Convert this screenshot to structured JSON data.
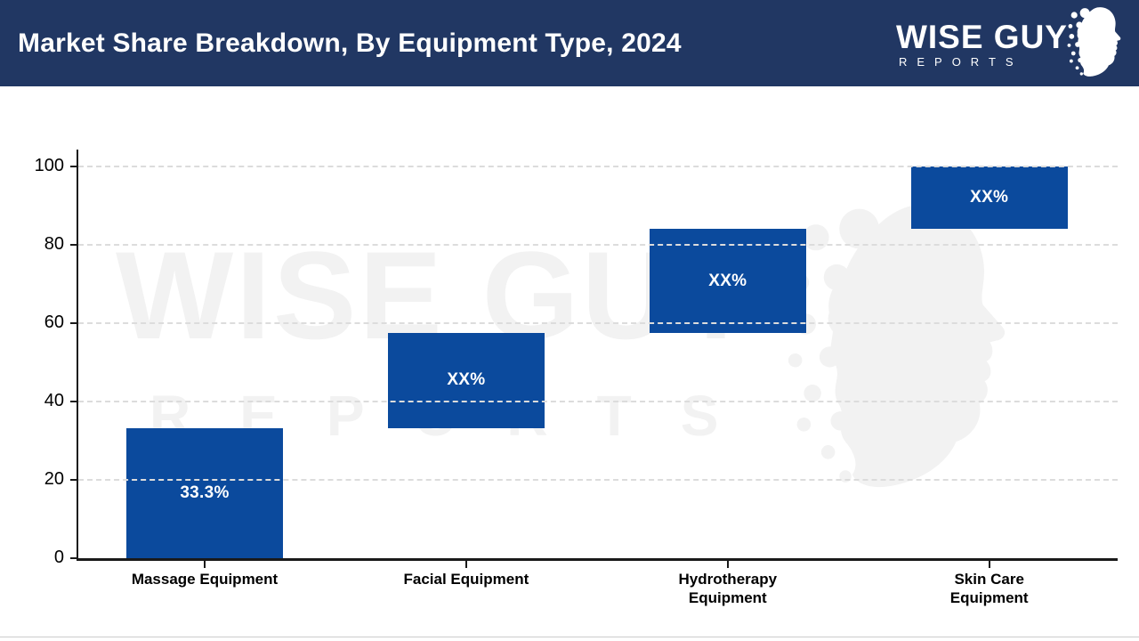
{
  "header": {
    "title": "Market Share Breakdown, By Equipment Type, 2024",
    "logo": {
      "name_top": "WISE GUY",
      "name_bottom": "REPORTS"
    }
  },
  "watermark": {
    "text_top": "WISE GUY",
    "text_bottom": "REPORTS"
  },
  "chart_data": {
    "type": "bar",
    "subtype": "waterfall",
    "title": "Market Share Breakdown, By Equipment Type, 2024",
    "categories": [
      "Massage Equipment",
      "Facial Equipment",
      "Hydrotherapy Equipment",
      "Skin Care Equipment"
    ],
    "segments": [
      {
        "category": "Massage Equipment",
        "start": 0,
        "end": 33.3,
        "label": "33.3%"
      },
      {
        "category": "Facial Equipment",
        "start": 33.3,
        "end": 57.5,
        "label": "XX%"
      },
      {
        "category": "Hydrotherapy Equipment",
        "start": 57.5,
        "end": 84,
        "label": "XX%"
      },
      {
        "category": "Skin Care Equipment",
        "start": 84,
        "end": 100,
        "label": "XX%"
      }
    ],
    "ylim": [
      0,
      100
    ],
    "yticks": [
      0,
      20,
      40,
      60,
      80,
      100
    ],
    "xlabel": "",
    "ylabel": "",
    "grid": "horizontal-dashed",
    "legend": "none",
    "bar_color": "#0b4a9d",
    "bar_label_color": "#ffffff",
    "category_wrap": [
      false,
      false,
      true,
      true
    ]
  },
  "colors": {
    "header_bg": "#213763",
    "header_text": "#ffffff",
    "bar": "#0b4a9d",
    "grid": "#dcdcdc",
    "axis": "#1a1a1a",
    "watermark": "#f2f2f2",
    "bottom_rule": "#cccccc"
  }
}
